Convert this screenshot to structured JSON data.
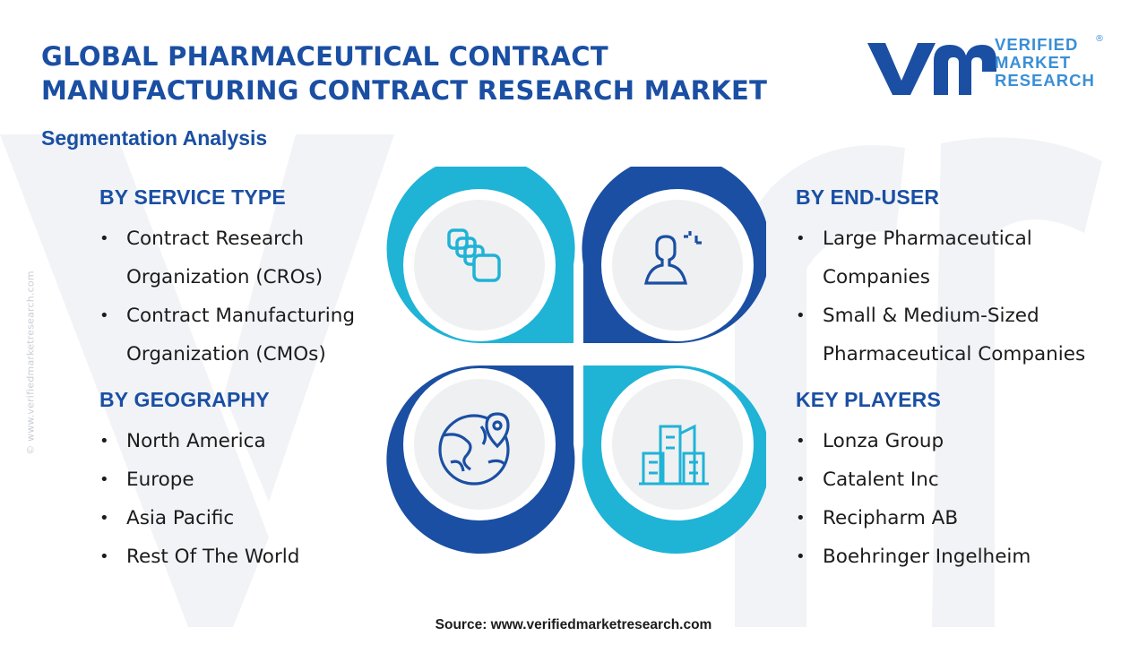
{
  "title_line1": "GLOBAL PHARMACEUTICAL CONTRACT",
  "title_line2": "MANUFACTURING CONTRACT RESEARCH MARKET",
  "subtitle": "Segmentation Analysis",
  "logo": {
    "line1": "VERIFIED",
    "line2": "MARKET",
    "line3": "RESEARCH",
    "reg": "®"
  },
  "side_watermark": "© www.verifiedmarketresearch.com",
  "colors": {
    "navy": "#1a4fa3",
    "cyan": "#1fb3d6",
    "circle_fill": "#eff0f2"
  },
  "sections": {
    "service_type": {
      "heading": "BY SERVICE TYPE",
      "items": [
        "Contract Research",
        "Organization (CROs)",
        "Contract Manufacturing",
        "Organization (CMOs)"
      ]
    },
    "geography": {
      "heading": "BY GEOGRAPHY",
      "items": [
        "North America",
        "Europe",
        "Asia Pacific",
        "Rest Of The World"
      ]
    },
    "end_user": {
      "heading": "BY END-USER",
      "items": [
        "Large Pharmaceutical",
        "Companies",
        "Small & Medium-Sized",
        "Pharmaceutical Companies"
      ]
    },
    "key_players": {
      "heading": "KEY PLAYERS",
      "items": [
        "Lonza Group",
        "Catalent Inc",
        "Recipharm AB",
        "Boehringer Ingelheim"
      ]
    }
  },
  "icons": {
    "top_left": "stacked-squares-icon",
    "top_right": "user-profile-icon",
    "bottom_left": "globe-location-icon",
    "bottom_right": "buildings-icon"
  },
  "source": "Source: www.verifiedmarketresearch.com"
}
